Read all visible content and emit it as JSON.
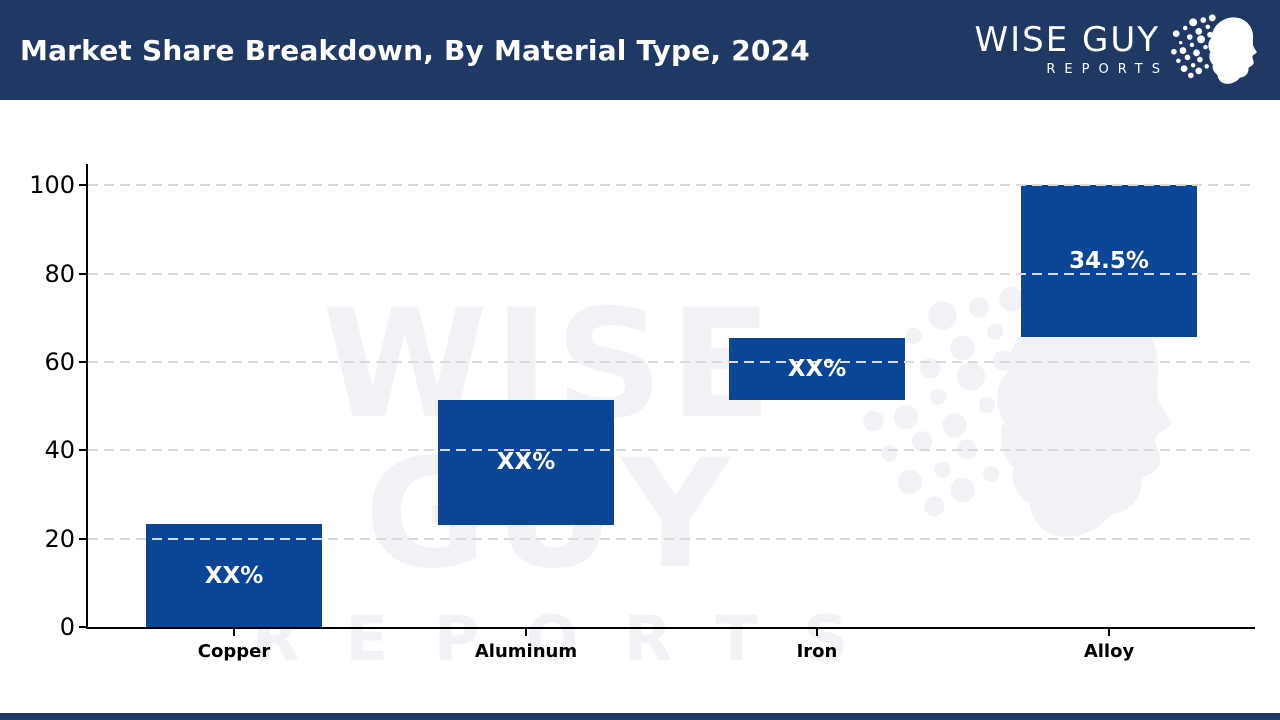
{
  "header": {
    "title": "Market Share Breakdown, By Material Type, 2024",
    "brand": {
      "line1": "WISE GUY",
      "line2": "REPORTS"
    }
  },
  "watermark": {
    "line1": "WISE GUY",
    "line2": "REPORTS"
  },
  "colors": {
    "header_bg": "#1f3864",
    "bar": "#0a4596",
    "grid": "#d9d9d9",
    "watermark": "#f1f2f5",
    "bar_label": "#ffffff",
    "axis": "#000000"
  },
  "chart_data": {
    "type": "bar",
    "subtype": "floating-waterfall",
    "title": "Market Share Breakdown, By Material Type, 2024",
    "categories": [
      "Copper",
      "Aluminum",
      "Iron",
      "Alloy"
    ],
    "segments": [
      {
        "category": "Copper",
        "start": 0,
        "end": 23.3,
        "value_label": "XX%"
      },
      {
        "category": "Aluminum",
        "start": 23.3,
        "end": 51.5,
        "value_label": "XX%"
      },
      {
        "category": "Iron",
        "start": 51.5,
        "end": 65.5,
        "value_label": "XX%"
      },
      {
        "category": "Alloy",
        "start": 65.5,
        "end": 100,
        "value_label": "34.5%"
      }
    ],
    "yticks": [
      0,
      20,
      40,
      60,
      80,
      100
    ],
    "ylim": [
      0,
      104.8
    ],
    "xlabel": "",
    "ylabel": "",
    "grid": "horizontal-dashed",
    "legend_position": "none"
  }
}
